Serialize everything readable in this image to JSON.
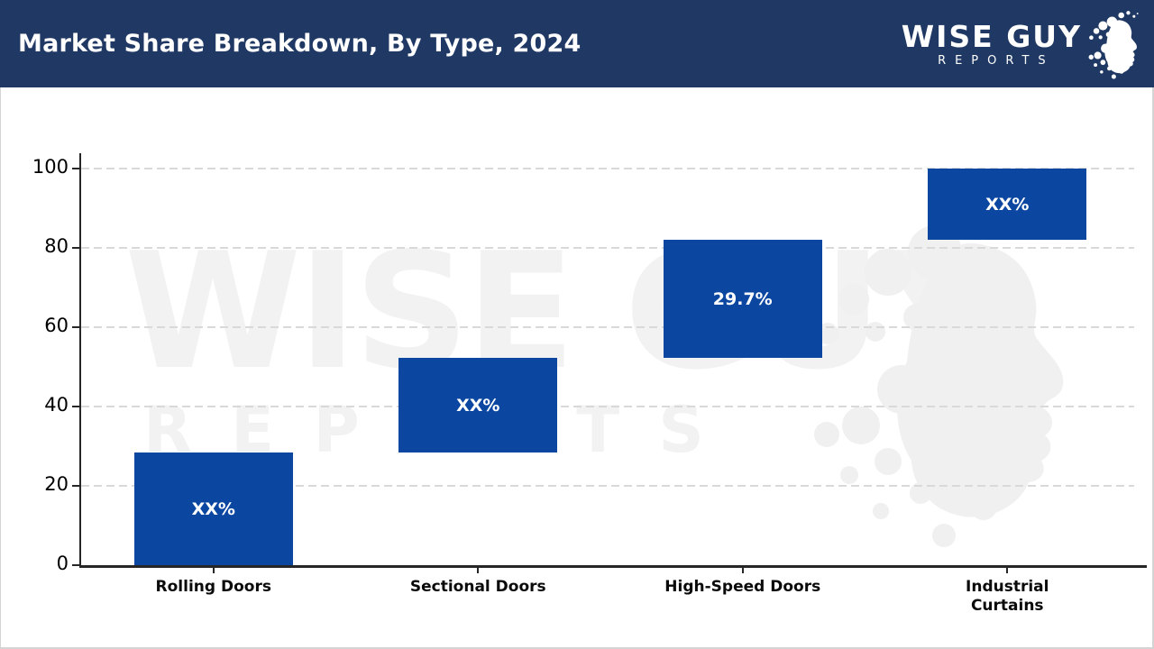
{
  "header": {
    "title": "Market Share Breakdown, By Type, 2024",
    "logo": {
      "brand_top": "WISE GUY",
      "brand_bottom": "REPORTS"
    }
  },
  "watermark": {
    "text_top": "WISE GUY",
    "text_bottom": "REPORTS"
  },
  "chart_data": {
    "type": "bar",
    "variant": "floating-segment-waterfall",
    "title": "Market Share Breakdown, By Type, 2024",
    "categories": [
      "Rolling Doors",
      "Sectional Doors",
      "High-Speed Doors",
      "Industrial\nCurtains"
    ],
    "bars": [
      {
        "category": "Rolling Doors",
        "start": 0,
        "end": 28.3,
        "value_label": "XX%"
      },
      {
        "category": "Sectional Doors",
        "start": 28.3,
        "end": 52.3,
        "value_label": "XX%"
      },
      {
        "category": "High-Speed Doors",
        "start": 52.3,
        "end": 82.0,
        "value_label": "29.7%"
      },
      {
        "category": "Industrial\nCurtains",
        "start": 82.0,
        "end": 100,
        "value_label": "XX%"
      }
    ],
    "ylim": [
      0,
      100
    ],
    "yticks": [
      0,
      20,
      40,
      60,
      80,
      100
    ],
    "xlabel": "",
    "ylabel": "",
    "grid": "horizontal-dashed",
    "legend": "none",
    "bar_color": "#0b47a1",
    "value_label_color": "#ffffff"
  },
  "colors": {
    "header_bg": "#1f3864",
    "bar_blue": "#0b47a1",
    "watermark_gray": "#f2f2f2",
    "grid_gray": "#d9d9d9",
    "axis_black": "#262626",
    "frame_gray": "#d4d4d4"
  }
}
